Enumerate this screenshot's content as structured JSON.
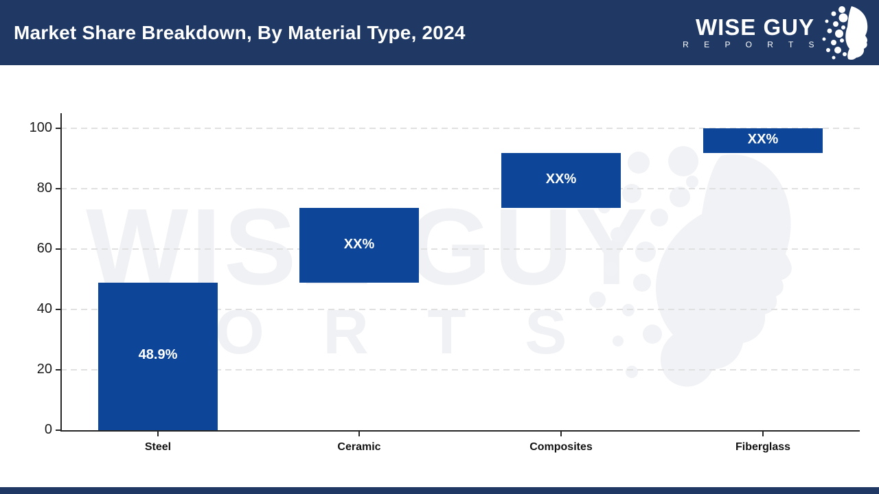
{
  "header": {
    "title": "Market Share Breakdown, By Material Type, 2024",
    "logo": {
      "line1": "WISE GUY",
      "line2": "R E P O R T S"
    }
  },
  "watermark": {
    "line1": "WISE GUY",
    "line2": "P O R T S"
  },
  "chart_data": {
    "type": "bar",
    "subtype": "waterfall",
    "title": "Market Share Breakdown, By Material Type, 2024",
    "categories": [
      "Steel",
      "Ceramic",
      "Composites",
      "Fiberglass"
    ],
    "segments": [
      {
        "category": "Steel",
        "start": 0,
        "end": 48.9,
        "label": "48.9%"
      },
      {
        "category": "Ceramic",
        "start": 48.9,
        "end": 73.6,
        "label": "XX%"
      },
      {
        "category": "Composites",
        "start": 73.6,
        "end": 91.8,
        "label": "XX%"
      },
      {
        "category": "Fiberglass",
        "start": 91.8,
        "end": 100,
        "label": "XX%"
      }
    ],
    "xlabel": "",
    "ylabel": "",
    "ylim": [
      0,
      105
    ],
    "yticks": [
      0,
      20,
      40,
      60,
      80,
      100
    ],
    "grid": "horizontal-dashed",
    "legend": "none",
    "bar_color": "#0d4699",
    "bar_label_color": "#ffffff",
    "axis_color": "#262626",
    "grid_color": "#e0e0e0",
    "header_color": "#1f3864",
    "watermark_color": "#f0f1f4"
  }
}
